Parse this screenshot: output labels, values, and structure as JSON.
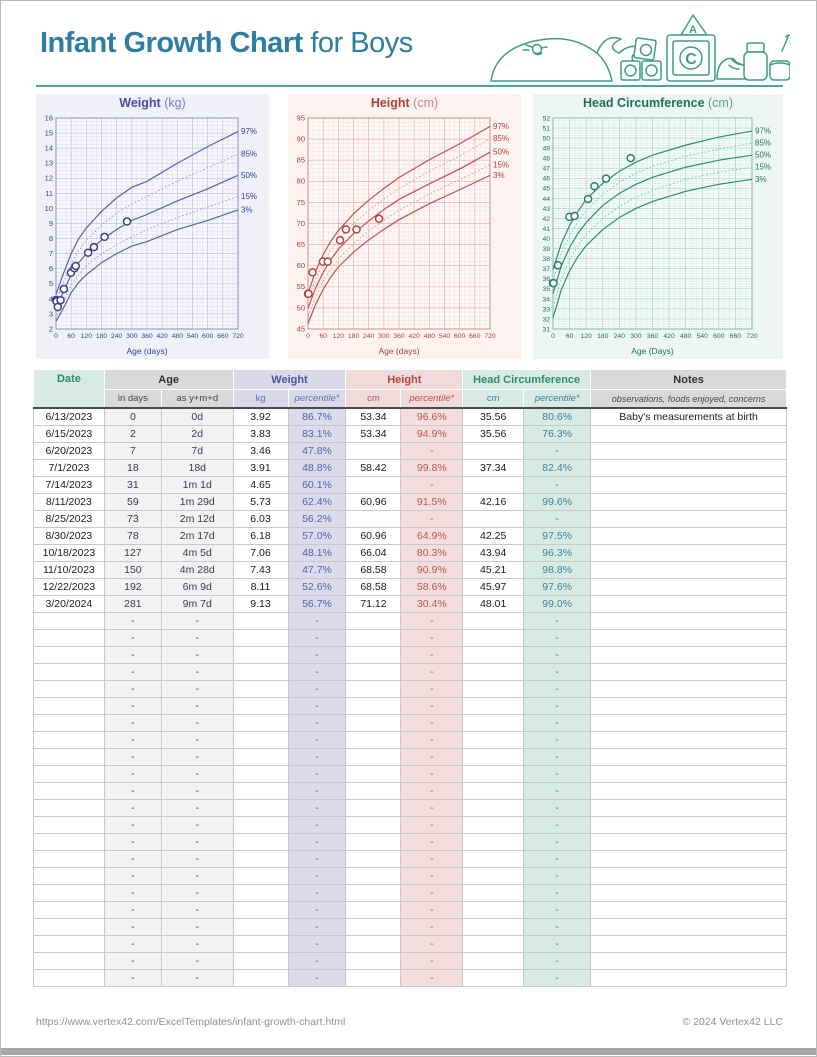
{
  "header": {
    "title_bold": "Infant Growth Chart",
    "title_suffix": "for Boys",
    "accent_color": "#2e7da3",
    "rule_color": "#4aa690",
    "illustration": {
      "icon": "baby-toys-illustration",
      "block_letters": [
        "A",
        "C"
      ],
      "stroke_color": "#3f9e85"
    }
  },
  "chart_data": [
    {
      "id": "weight",
      "type": "line",
      "title": "Weight",
      "unit": "(kg)",
      "xlabel": "Age (days)",
      "xlim": [
        0,
        720
      ],
      "x_major": 60,
      "x_minor": 20,
      "ylim": [
        2,
        16
      ],
      "y_major": 1,
      "y_minor": 0.25,
      "grid": true,
      "legend_position": "right-of-plot",
      "x_samples": [
        0,
        30,
        60,
        90,
        120,
        180,
        240,
        300,
        360,
        480,
        600,
        720
      ],
      "series": [
        {
          "name": "97%",
          "style": "solid",
          "values": [
            4.3,
            5.7,
            7.0,
            8.0,
            8.7,
            9.8,
            10.7,
            11.4,
            11.8,
            13.0,
            14.1,
            15.1
          ]
        },
        {
          "name": "85%",
          "style": "dotted",
          "values": [
            3.9,
            5.1,
            6.3,
            7.2,
            7.9,
            8.9,
            9.7,
            10.3,
            10.8,
            11.8,
            12.7,
            13.6
          ]
        },
        {
          "name": "50%",
          "style": "solid",
          "values": [
            3.3,
            4.5,
            5.6,
            6.4,
            7.0,
            7.9,
            8.6,
            9.2,
            9.6,
            10.5,
            11.3,
            12.2
          ]
        },
        {
          "name": "15%",
          "style": "dotted",
          "values": [
            2.9,
            3.9,
            4.9,
            5.6,
            6.2,
            7.0,
            7.6,
            8.1,
            8.6,
            9.4,
            10.1,
            10.8
          ]
        },
        {
          "name": "3%",
          "style": "solid",
          "values": [
            2.5,
            3.4,
            4.4,
            5.1,
            5.6,
            6.4,
            7.0,
            7.5,
            7.8,
            8.6,
            9.2,
            9.9
          ]
        }
      ],
      "points": [
        [
          0,
          3.92
        ],
        [
          2,
          3.83
        ],
        [
          7,
          3.46
        ],
        [
          18,
          3.91
        ],
        [
          31,
          4.65
        ],
        [
          59,
          5.73
        ],
        [
          73,
          6.03
        ],
        [
          78,
          6.18
        ],
        [
          127,
          7.06
        ],
        [
          150,
          7.43
        ],
        [
          192,
          8.11
        ],
        [
          281,
          9.13
        ]
      ],
      "colors": {
        "panel": "#eff0f8",
        "plot": "#f7f7fc",
        "minor": "#dedef1",
        "major": "#c3c3e1",
        "axis": "#8f8fbf",
        "line": "#5f5fa7",
        "dotted": "#a0a0cc",
        "text": "#3d3d8f",
        "title": "#4a4aa5",
        "unit": "#7b7bad",
        "point": "#3c3c8f"
      }
    },
    {
      "id": "height",
      "type": "line",
      "title": "Height",
      "unit": "(cm)",
      "xlabel": "Age (days)",
      "xlim": [
        0,
        720
      ],
      "x_major": 60,
      "x_minor": 20,
      "ylim": [
        45,
        95
      ],
      "y_major": 5,
      "y_minor": 1,
      "grid": true,
      "legend_position": "right-of-plot",
      "x_samples": [
        0,
        30,
        60,
        90,
        120,
        180,
        240,
        300,
        360,
        480,
        600,
        720
      ],
      "series": [
        {
          "name": "97%",
          "style": "solid",
          "values": [
            53.4,
            58.7,
            62.6,
            65.8,
            68.3,
            72.3,
            75.5,
            78.3,
            80.9,
            85.1,
            88.9,
            93.0
          ]
        },
        {
          "name": "85%",
          "style": "dotted",
          "values": [
            51.8,
            56.9,
            60.6,
            63.7,
            66.2,
            70.0,
            73.1,
            75.8,
            78.3,
            82.4,
            86.0,
            90.1
          ]
        },
        {
          "name": "50%",
          "style": "solid",
          "values": [
            49.9,
            54.7,
            58.4,
            61.4,
            63.9,
            67.6,
            70.6,
            73.3,
            75.7,
            79.4,
            82.9,
            86.9
          ]
        },
        {
          "name": "15%",
          "style": "dotted",
          "values": [
            48.0,
            52.6,
            56.3,
            59.2,
            61.6,
            65.2,
            68.2,
            70.8,
            73.1,
            77.0,
            80.4,
            83.9
          ]
        },
        {
          "name": "3%",
          "style": "solid",
          "values": [
            46.3,
            50.8,
            54.4,
            57.3,
            59.7,
            63.2,
            66.1,
            68.6,
            70.9,
            74.7,
            78.0,
            81.4
          ]
        }
      ],
      "points": [
        [
          0,
          53.34
        ],
        [
          2,
          53.34
        ],
        [
          18,
          58.42
        ],
        [
          59,
          60.96
        ],
        [
          78,
          60.96
        ],
        [
          127,
          66.04
        ],
        [
          150,
          68.58
        ],
        [
          192,
          68.58
        ],
        [
          281,
          71.12
        ]
      ],
      "colors": {
        "panel": "#fcf3f1",
        "plot": "#fdf8f7",
        "minor": "#f6dedb",
        "major": "#e7b2ae",
        "axis": "#cf8d89",
        "line": "#c0504d",
        "dotted": "#dda09d",
        "text": "#a8403d",
        "title": "#a8403d",
        "unit": "#c08a86",
        "point": "#b04743"
      }
    },
    {
      "id": "head_circumference",
      "type": "line",
      "title": "Head Circumference",
      "unit": "(cm)",
      "xlabel": "Age (Days)",
      "xlim": [
        0,
        720
      ],
      "x_major": 60,
      "x_minor": 20,
      "ylim": [
        31,
        52
      ],
      "y_major": 1,
      "y_minor": 0.25,
      "grid": true,
      "legend_position": "right-of-plot",
      "x_samples": [
        0,
        30,
        60,
        90,
        120,
        180,
        240,
        300,
        360,
        480,
        600,
        720
      ],
      "series": [
        {
          "name": "97%",
          "style": "solid",
          "values": [
            36.9,
            39.5,
            41.3,
            42.7,
            43.9,
            45.5,
            46.7,
            47.6,
            48.3,
            49.3,
            50.1,
            50.7
          ]
        },
        {
          "name": "85%",
          "style": "dotted",
          "values": [
            35.8,
            38.5,
            40.2,
            41.7,
            42.8,
            44.4,
            45.6,
            46.5,
            47.2,
            48.2,
            48.9,
            49.5
          ]
        },
        {
          "name": "50%",
          "style": "solid",
          "values": [
            34.5,
            37.3,
            39.1,
            40.5,
            41.6,
            43.3,
            44.5,
            45.4,
            46.1,
            47.1,
            47.8,
            48.3
          ]
        },
        {
          "name": "15%",
          "style": "dotted",
          "values": [
            33.2,
            36.0,
            37.9,
            39.3,
            40.4,
            42.0,
            43.2,
            44.1,
            44.8,
            45.9,
            46.6,
            47.1
          ]
        },
        {
          "name": "3%",
          "style": "solid",
          "values": [
            32.1,
            34.9,
            36.8,
            38.2,
            39.3,
            40.9,
            42.1,
            43.0,
            43.7,
            44.7,
            45.4,
            45.9
          ]
        }
      ],
      "points": [
        [
          0,
          35.56
        ],
        [
          2,
          35.56
        ],
        [
          18,
          37.34
        ],
        [
          59,
          42.16
        ],
        [
          78,
          42.25
        ],
        [
          127,
          43.94
        ],
        [
          150,
          45.21
        ],
        [
          192,
          45.97
        ],
        [
          281,
          48.01
        ]
      ],
      "colors": {
        "panel": "#edf6f2",
        "plot": "#f6fbf9",
        "minor": "#d4ebe2",
        "major": "#abd7c9",
        "axis": "#7fbcaa",
        "line": "#2e8b74",
        "dotted": "#85c4b2",
        "text": "#21705e",
        "title": "#21705e",
        "unit": "#5d9f8d",
        "point": "#2a7f69"
      }
    }
  ],
  "table": {
    "header": {
      "date": "Date",
      "age": "Age",
      "age_in_days": "in days",
      "age_ymd": "as y+m+d",
      "weight": "Weight",
      "weight_unit": "kg",
      "weight_pct": "percentile*",
      "height": "Height",
      "height_unit": "cm",
      "height_pct": "percentile*",
      "head": "Head Circumference",
      "head_unit": "cm",
      "head_pct": "percentile*",
      "notes": "Notes",
      "notes_sub": "observations, foods enjoyed, concerns"
    },
    "rows": [
      [
        "6/13/2023",
        "0",
        "0d",
        "3.92",
        "86.7%",
        "53.34",
        "96.6%",
        "35.56",
        "80.6%",
        "Baby's measurements at birth"
      ],
      [
        "6/15/2023",
        "2",
        "2d",
        "3.83",
        "83.1%",
        "53.34",
        "94.9%",
        "35.56",
        "76.3%",
        ""
      ],
      [
        "6/20/2023",
        "7",
        "7d",
        "3.46",
        "47.8%",
        "",
        "-",
        "",
        "-",
        ""
      ],
      [
        "7/1/2023",
        "18",
        "18d",
        "3.91",
        "48.8%",
        "58.42",
        "99.8%",
        "37.34",
        "82.4%",
        ""
      ],
      [
        "7/14/2023",
        "31",
        "1m 1d",
        "4.65",
        "60.1%",
        "",
        "-",
        "",
        "-",
        ""
      ],
      [
        "8/11/2023",
        "59",
        "1m 29d",
        "5.73",
        "62.4%",
        "60.96",
        "91.5%",
        "42.16",
        "99.6%",
        ""
      ],
      [
        "8/25/2023",
        "73",
        "2m 12d",
        "6.03",
        "56.2%",
        "",
        "-",
        "",
        "-",
        ""
      ],
      [
        "8/30/2023",
        "78",
        "2m 17d",
        "6.18",
        "57.0%",
        "60.96",
        "64.9%",
        "42.25",
        "97.5%",
        ""
      ],
      [
        "10/18/2023",
        "127",
        "4m 5d",
        "7.06",
        "48.1%",
        "66.04",
        "80.3%",
        "43.94",
        "96.3%",
        ""
      ],
      [
        "11/10/2023",
        "150",
        "4m 28d",
        "7.43",
        "47.7%",
        "68.58",
        "90.9%",
        "45.21",
        "98.8%",
        ""
      ],
      [
        "12/22/2023",
        "192",
        "6m 9d",
        "8.11",
        "52.6%",
        "68.58",
        "58.6%",
        "45.97",
        "97.6%",
        ""
      ],
      [
        "3/20/2024",
        "281",
        "9m 7d",
        "9.13",
        "56.7%",
        "71.12",
        "30.4%",
        "48.01",
        "99.0%",
        ""
      ]
    ],
    "empty_row_count": 22,
    "empty_row": [
      "",
      "-",
      "-",
      "",
      "-",
      "",
      "-",
      "",
      "-",
      ""
    ]
  },
  "footer": {
    "url": "https://www.vertex42.com/ExcelTemplates/infant-growth-chart.html",
    "copyright": "© 2024 Vertex42 LLC"
  }
}
